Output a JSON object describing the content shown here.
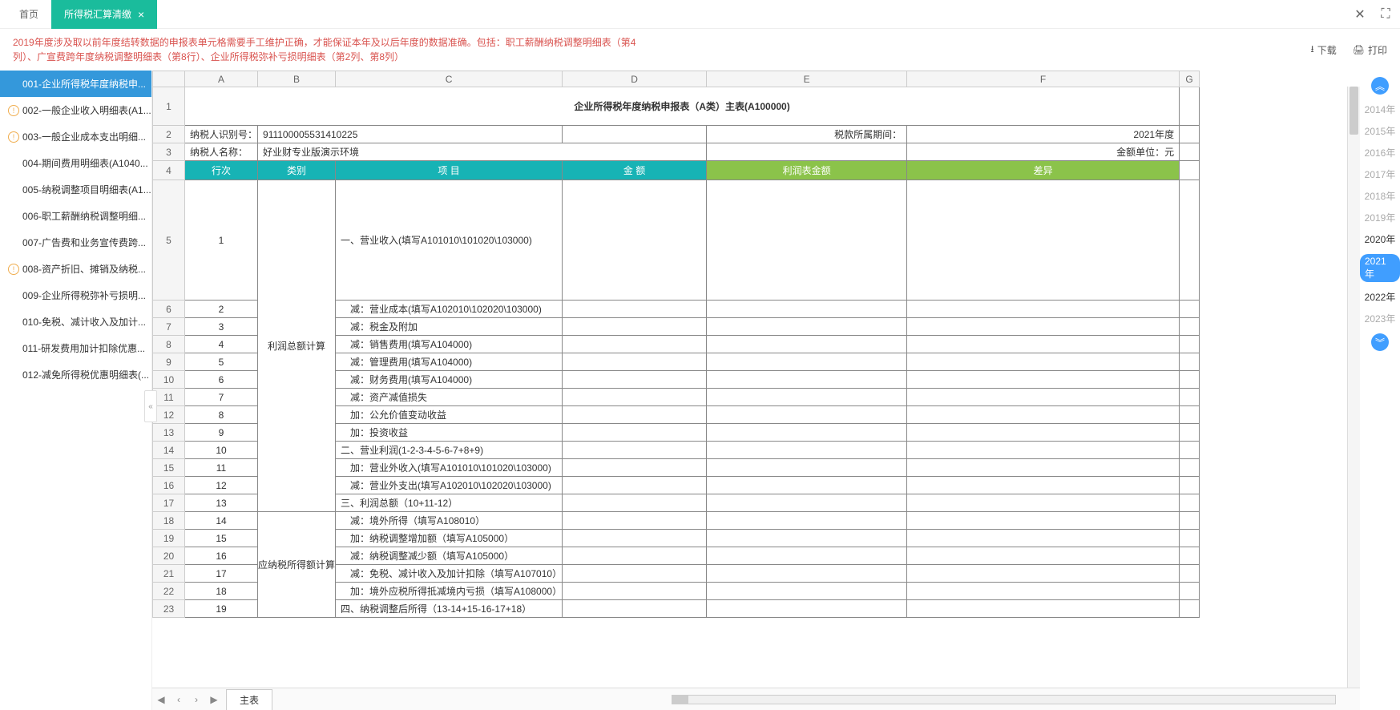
{
  "tabs": {
    "home": "首页",
    "active": "所得税汇算清缴"
  },
  "notice": "2019年度涉及取以前年度结转数据的申报表单元格需要手工维护正确，才能保证本年及以后年度的数据准确。包括：职工薪酬纳税调整明细表（第4列）、广宣费跨年度纳税调整明细表（第8行）、企业所得税弥补亏损明细表（第2列、第8列）",
  "actions": {
    "download": "下载",
    "print": "打印"
  },
  "sidebar": [
    {
      "warn": false,
      "label": "001-企业所得税年度纳税申...",
      "active": true
    },
    {
      "warn": true,
      "label": "002-一般企业收入明细表(A1..."
    },
    {
      "warn": true,
      "label": "003-一般企业成本支出明细..."
    },
    {
      "warn": false,
      "label": "004-期间费用明细表(A1040..."
    },
    {
      "warn": false,
      "label": "005-纳税调整项目明细表(A1..."
    },
    {
      "warn": false,
      "label": "006-职工薪酬纳税调整明细..."
    },
    {
      "warn": false,
      "label": "007-广告费和业务宣传费跨..."
    },
    {
      "warn": true,
      "label": "008-资产折旧、摊销及纳税..."
    },
    {
      "warn": false,
      "label": "009-企业所得税弥补亏损明..."
    },
    {
      "warn": false,
      "label": "010-免税、减计收入及加计..."
    },
    {
      "warn": false,
      "label": "011-研发费用加计扣除优惠..."
    },
    {
      "warn": false,
      "label": "012-减免所得税优惠明细表(..."
    }
  ],
  "columns": [
    "A",
    "B",
    "C",
    "D",
    "E",
    "F",
    "G"
  ],
  "sheet": {
    "title": "企业所得税年度纳税申报表（A类）主表(A100000)",
    "taxpayer_id_label": "纳税人识别号：",
    "taxpayer_id": "911100005531410225",
    "period_label": "税款所属期间：",
    "period": "2021年度",
    "taxpayer_name_label": "纳税人名称：",
    "taxpayer_name": "好业财专业版演示环境",
    "unit_label": "金额单位：元",
    "headers": {
      "c1": "行次",
      "c2": "类别",
      "c3": "项     目",
      "c4": "金     额",
      "c5": "利润表金额",
      "c6": "差异"
    },
    "cat1": "利润总额计算",
    "cat2": "应纳税所得额计算",
    "rows": [
      {
        "n": "1",
        "item": "一、营业收入(填写A101010\\101020\\103000)"
      },
      {
        "n": "2",
        "item": "减：营业成本(填写A102010\\102020\\103000)"
      },
      {
        "n": "3",
        "item": "减：税金及附加"
      },
      {
        "n": "4",
        "item": "减：销售费用(填写A104000)"
      },
      {
        "n": "5",
        "item": "减：管理费用(填写A104000)"
      },
      {
        "n": "6",
        "item": "减：财务费用(填写A104000)"
      },
      {
        "n": "7",
        "item": "减：资产减值损失"
      },
      {
        "n": "8",
        "item": "加：公允价值变动收益"
      },
      {
        "n": "9",
        "item": "加：投资收益"
      },
      {
        "n": "10",
        "item": "二、营业利润(1-2-3-4-5-6-7+8+9)"
      },
      {
        "n": "11",
        "item": "加：营业外收入(填写A101010\\101020\\103000)"
      },
      {
        "n": "12",
        "item": "减：营业外支出(填写A102010\\102020\\103000)"
      },
      {
        "n": "13",
        "item": "三、利润总额（10+11-12）"
      },
      {
        "n": "14",
        "item": "减：境外所得（填写A108010）"
      },
      {
        "n": "15",
        "item": "加：纳税调整增加额（填写A105000）"
      },
      {
        "n": "16",
        "item": "减：纳税调整减少额（填写A105000）"
      },
      {
        "n": "17",
        "item": "减：免税、减计收入及加计扣除（填写A107010）"
      },
      {
        "n": "18",
        "item": "加：境外应税所得抵减境内亏损（填写A108000）"
      },
      {
        "n": "19",
        "item": "四、纳税调整后所得（13-14+15-16-17+18）"
      }
    ]
  },
  "sheet_tab": "主表",
  "years": [
    "2014年",
    "2015年",
    "2016年",
    "2017年",
    "2018年",
    "2019年",
    "2020年",
    "2021年",
    "2022年",
    "2023年"
  ],
  "active_year": "2021年",
  "strong_years": [
    "2020年",
    "2021年",
    "2022年"
  ]
}
